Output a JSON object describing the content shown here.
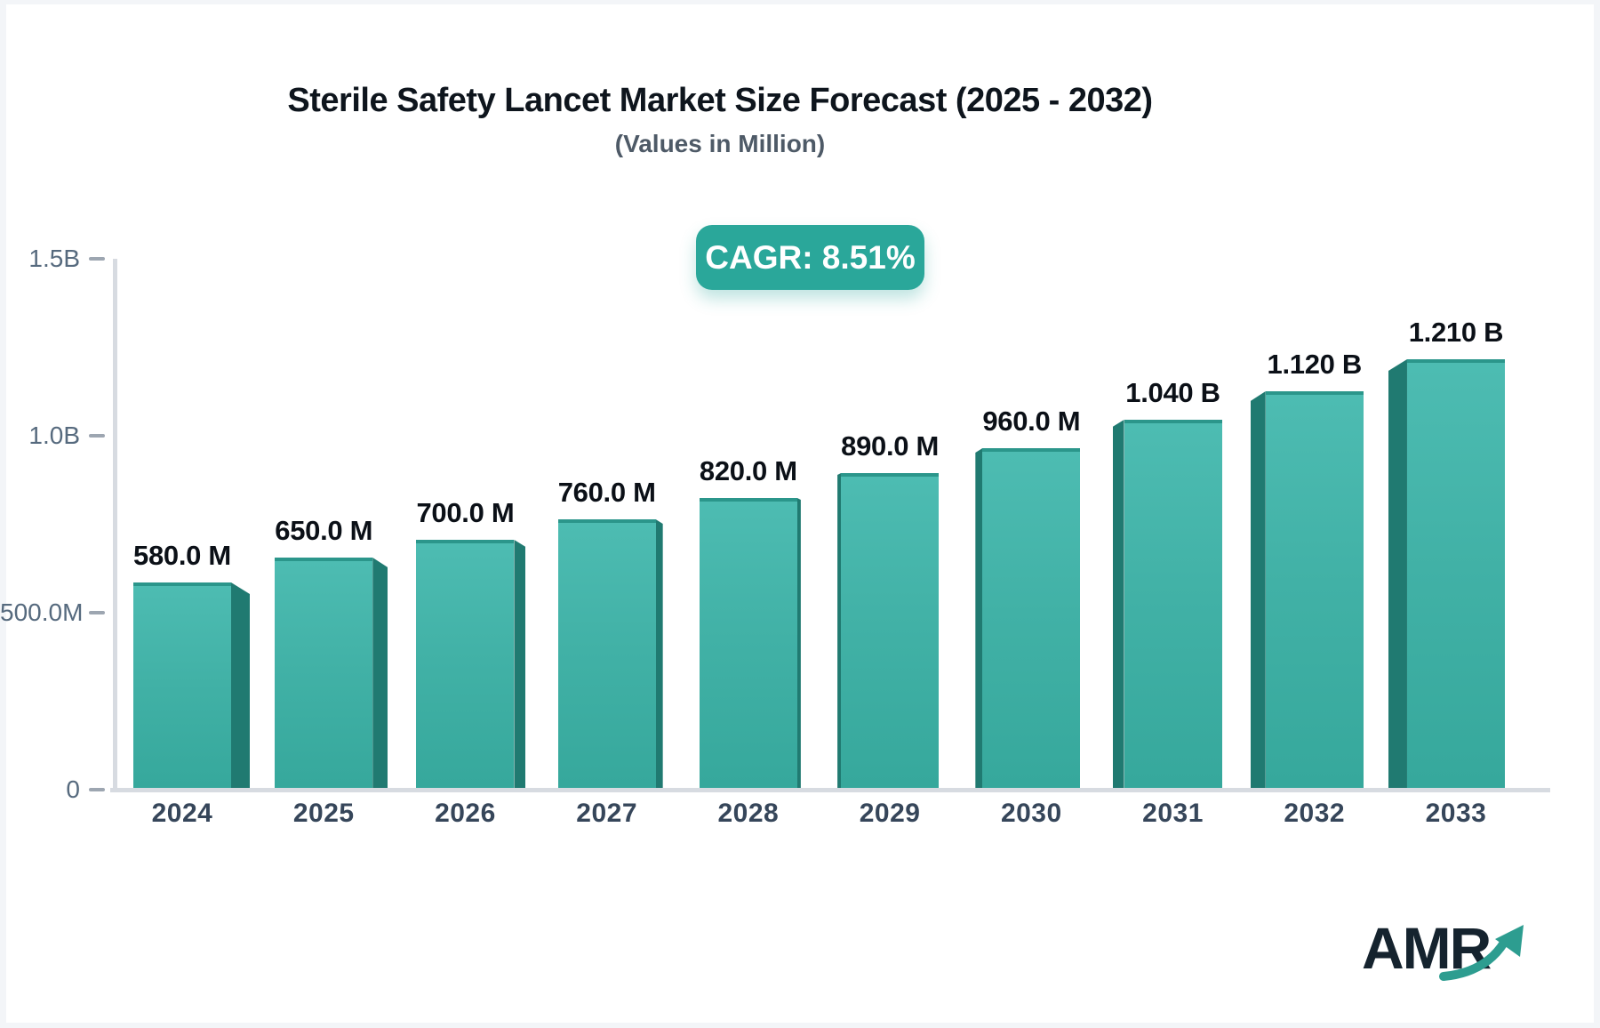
{
  "page": {
    "background": "#f3f5f8",
    "card_background": "#ffffff"
  },
  "header": {
    "title": "Sterile Safety Lancet Market Size Forecast (2025 - 2032)",
    "subtitle": "(Values in Million)",
    "badge_label": "CAGR: 8.51%"
  },
  "chart_data": {
    "type": "bar",
    "title": "Sterile Safety Lancet Market Size Forecast (2025 - 2032)",
    "subtitle": "(Values in Million)",
    "annotation": "CAGR: 8.51%",
    "categories": [
      "2024",
      "2025",
      "2026",
      "2027",
      "2028",
      "2029",
      "2030",
      "2031",
      "2032",
      "2033"
    ],
    "values_millions": [
      580,
      650,
      700,
      760,
      820,
      890,
      960,
      1040,
      1120,
      1210
    ],
    "value_labels": [
      "580.0 M",
      "650.0 M",
      "700.0 M",
      "760.0 M",
      "820.0 M",
      "890.0 M",
      "960.0 M",
      "1.040 B",
      "1.120 B",
      "1.210 B"
    ],
    "xlabel": "",
    "ylabel": "",
    "ylim": [
      0,
      1500
    ],
    "y_ticks": [
      {
        "label": "1.5B",
        "value": 1500
      },
      {
        "label": "1.0B",
        "value": 1000
      },
      {
        "label": "500.0M",
        "value": 500
      },
      {
        "label": "0",
        "value": 0
      }
    ],
    "grid": false,
    "legend_position": "none",
    "colors": {
      "bar_face_top": "#4dbcb2",
      "bar_face_bottom": "#36a89c",
      "bar_side": "#207a71",
      "bar_top_edge": "#2b968b",
      "badge_background": "#2aa79a",
      "badge_text": "#ffffff",
      "axis_line": "#d7dbe1",
      "tick_dash": "#9da6b1",
      "tick_text": "#566a7e",
      "title_text": "#0e151d",
      "subtitle_text": "#4e5a67",
      "value_text": "#0b1017",
      "category_text": "#36465a"
    }
  },
  "logo": {
    "text": "AMR",
    "text_color": "#15232e",
    "arrow_color": "#2d9d90"
  }
}
